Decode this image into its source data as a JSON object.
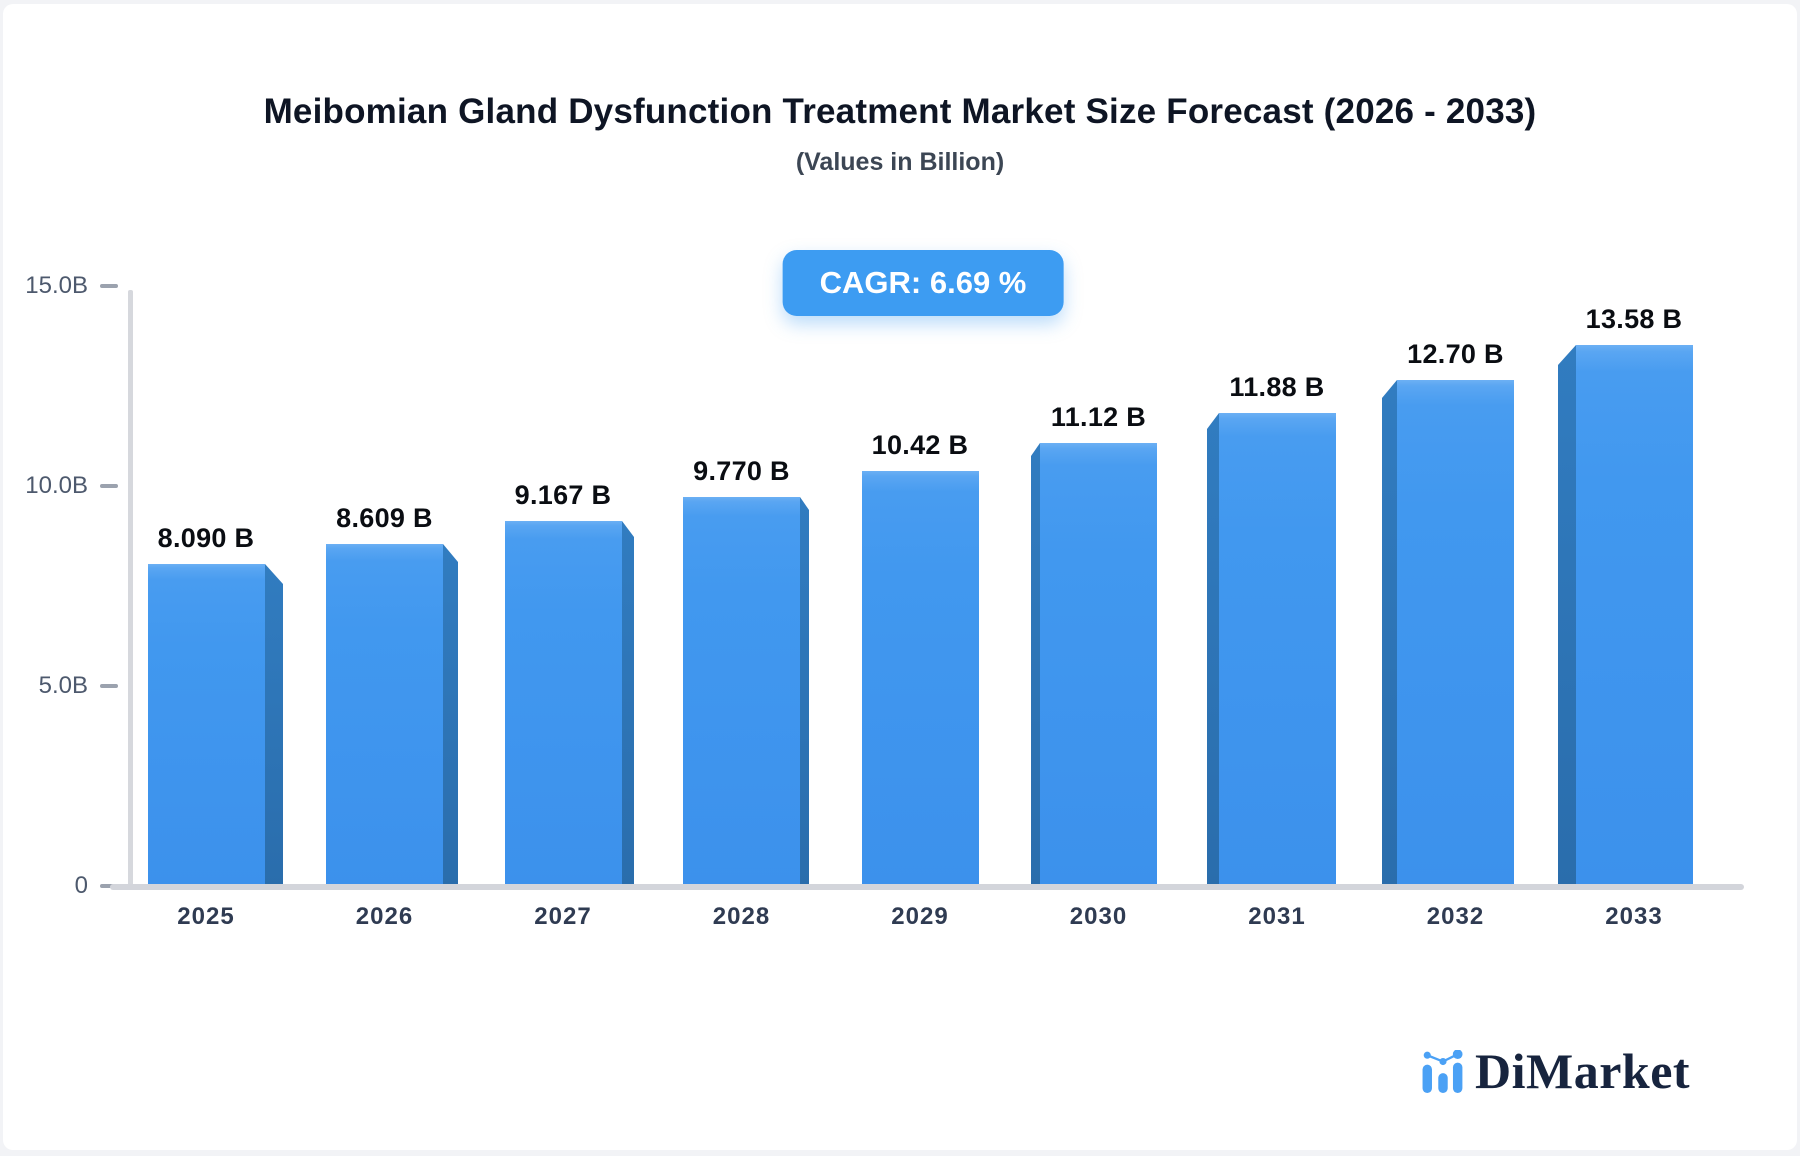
{
  "page": {
    "title": "Meibomian Gland Dysfunction Treatment Market Size Forecast (2026 - 2033)",
    "subtitle": "(Values in Billion)",
    "cagr_badge": "CAGR: 6.69 %"
  },
  "chart_data": {
    "type": "bar",
    "title": "Meibomian Gland Dysfunction Treatment Market Size Forecast (2026 - 2033)",
    "subtitle": "(Values in Billion)",
    "cagr": "6.69 %",
    "categories": [
      "2025",
      "2026",
      "2027",
      "2028",
      "2029",
      "2030",
      "2031",
      "2032",
      "2033"
    ],
    "values": [
      8.09,
      8.609,
      9.167,
      9.77,
      10.42,
      11.12,
      11.88,
      12.7,
      13.58
    ],
    "value_labels": [
      "8.090 B",
      "8.609 B",
      "9.167 B",
      "9.770 B",
      "10.42 B",
      "11.12 B",
      "11.88 B",
      "12.70 B",
      "13.58 B"
    ],
    "xlabel": "",
    "ylabel": "",
    "ylim": [
      0,
      15
    ],
    "yticks": [
      {
        "value": 0,
        "label": "0"
      },
      {
        "value": 5,
        "label": "5.0B"
      },
      {
        "value": 10,
        "label": "10.0B"
      },
      {
        "value": 15,
        "label": "15.0B"
      }
    ],
    "grid": false,
    "legend": false,
    "style": "3d-perspective-bars",
    "colors": {
      "bar_face": "#4399EF",
      "bar_face_top": "#6CB0F4",
      "bar_face_bottom": "#3C91EC",
      "bar_side_top": "#317CC0",
      "bar_side_bottom": "#2A6DAC",
      "badge_bg": "#3D9CF2",
      "badge_text": "#FFFFFF",
      "axis": "#D6D8DD",
      "tick": "#9BA2AE",
      "ytick_text": "#4D596D",
      "xtick_text": "#2F3B52",
      "value_text": "#0A0D12",
      "title_text": "#0E1524"
    }
  },
  "branding": {
    "logo_text": "DiMarket",
    "logo_icon": "bar-chart-icon",
    "logo_icon_color": "#4BA1F5",
    "logo_text_color": "#17243E"
  }
}
